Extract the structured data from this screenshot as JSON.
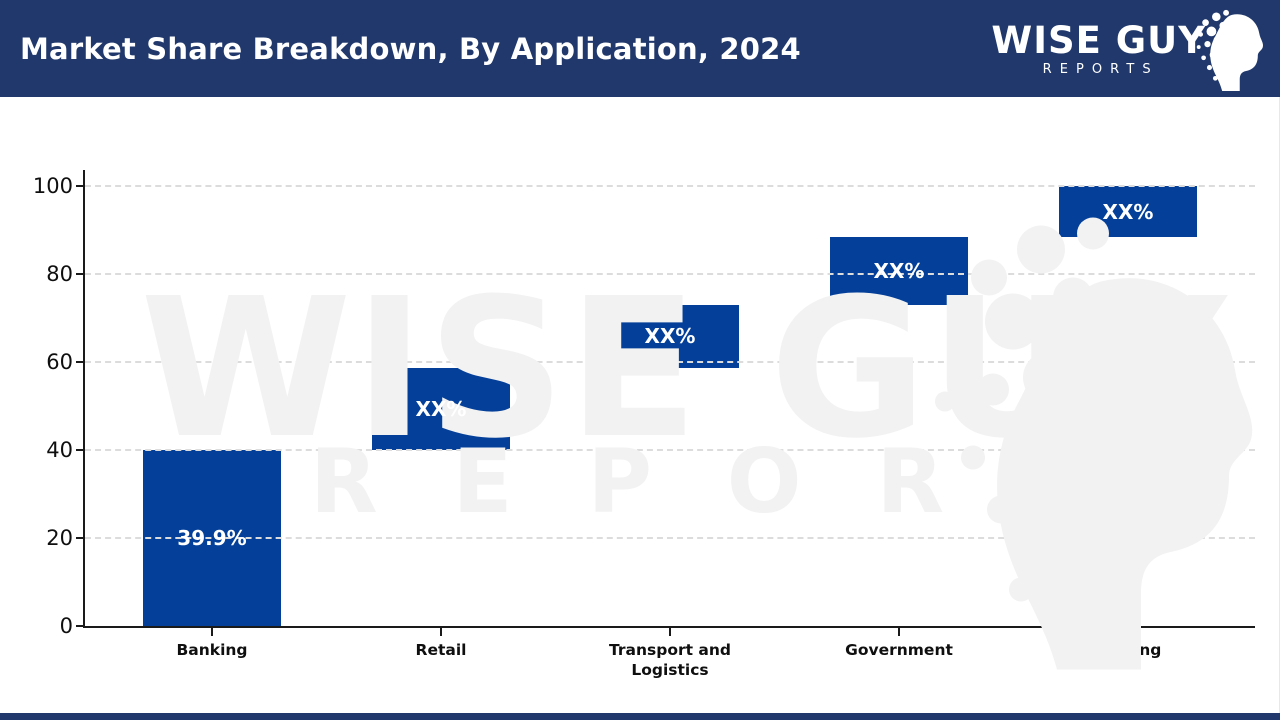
{
  "header": {
    "title": "Market Share Breakdown, By Application, 2024",
    "logo": {
      "wordmark": "WISE GUY",
      "subtext": "REPORTS"
    }
  },
  "watermark": {
    "line1": "WISE GUY",
    "line2": "REPORTS"
  },
  "theme": {
    "header_bg": "#20386B",
    "footer_bg": "#20386B",
    "bar_color": "#04409A",
    "bar_label_color": "#FFFFFF",
    "axis_color": "#1A1A1A",
    "grid_color": "#DCDCDC",
    "watermark_color": "#F2F2F2"
  },
  "chart_data": {
    "type": "bar",
    "subtype": "waterfall-segments",
    "title": "Market Share Breakdown, By Application, 2024",
    "categories": [
      "Banking",
      "Retail",
      "Transport and Logistics",
      "Government",
      "Gaming"
    ],
    "segments": [
      {
        "category": "Banking",
        "start": 0,
        "end": 39.9,
        "label": "39.9%"
      },
      {
        "category": "Retail",
        "start": 39.9,
        "end": 58.6,
        "label": "XX%"
      },
      {
        "category": "Transport and Logistics",
        "start": 58.6,
        "end": 73.0,
        "label": "XX%"
      },
      {
        "category": "Government",
        "start": 73.0,
        "end": 88.3,
        "label": "XX%"
      },
      {
        "category": "Gaming",
        "start": 88.3,
        "end": 99.9,
        "label": "XX%"
      }
    ],
    "xlabel": "",
    "ylabel": "",
    "ylim": [
      0,
      103.6
    ],
    "yticks": [
      0,
      20,
      40,
      60,
      80,
      100
    ],
    "grid": "horizontal-dashed",
    "legend": "none"
  }
}
